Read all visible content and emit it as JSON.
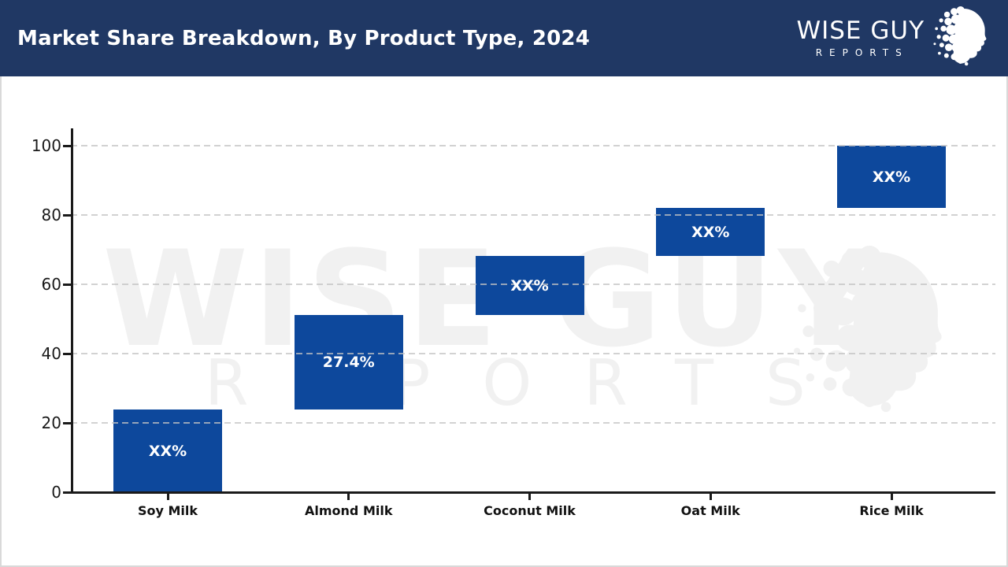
{
  "header": {
    "title": "Market Share Breakdown, By Product Type, 2024",
    "logo": {
      "line1": "WISE GUY",
      "line2": "REPORTS",
      "head_icon": "dotted-head-profile-icon"
    }
  },
  "watermark": {
    "line1": "WISE GUY",
    "line2": "REPORTS",
    "head_icon": "dotted-head-profile-icon"
  },
  "colors": {
    "header_bg": "#203864",
    "bar": "#0d489c",
    "axis": "#1a1a1a",
    "grid": "rgba(195,195,195,0.75)",
    "watermark": "#f1f1f1",
    "title_text": "#ffffff",
    "bar_label_text": "#ffffff"
  },
  "chart_data": {
    "type": "bar",
    "subtype": "waterfall-floating-bars",
    "title": "Market Share Breakdown, By Product Type, 2024",
    "categories": [
      "Soy Milk",
      "Almond Milk",
      "Coconut Milk",
      "Oat Milk",
      "Rice Milk"
    ],
    "values": [
      23.8,
      27.4,
      16.9,
      13.9,
      18.0
    ],
    "starts": [
      0,
      23.8,
      51.2,
      68.1,
      82.0
    ],
    "bar_labels": [
      "XX%",
      "27.4%",
      "XX%",
      "XX%",
      "XX%"
    ],
    "xlabel": "",
    "ylabel": "",
    "yticks": [
      0,
      20,
      40,
      60,
      80,
      100
    ],
    "ylim": [
      0,
      105
    ],
    "grid": "horizontal-dashed",
    "legend": "none"
  }
}
